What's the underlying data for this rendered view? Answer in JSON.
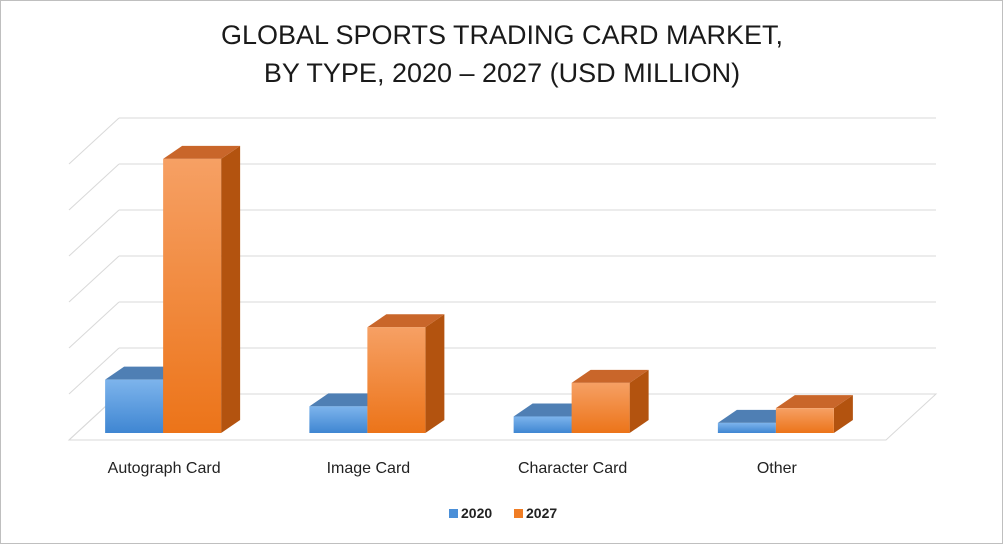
{
  "chart_data": {
    "type": "bar",
    "style": "3d-clustered-column",
    "title": [
      "GLOBAL SPORTS TRADING CARD MARKET,",
      "BY TYPE, 2020 – 2027 (USD MILLION)"
    ],
    "categories": [
      "Autograph Card",
      "Image Card",
      "Character Card",
      "Other"
    ],
    "series": [
      {
        "name": "2020",
        "color": "#4a8fd8",
        "values": [
          1.16,
          0.58,
          0.36,
          0.22
        ]
      },
      {
        "name": "2027",
        "color": "#f07d24",
        "values": [
          5.96,
          2.3,
          1.09,
          0.54
        ]
      }
    ],
    "ylim": [
      0,
      6.5
    ],
    "y_tick_step": 1,
    "y_tick_labels_shown": false,
    "grid": true,
    "legend_position": "bottom"
  }
}
